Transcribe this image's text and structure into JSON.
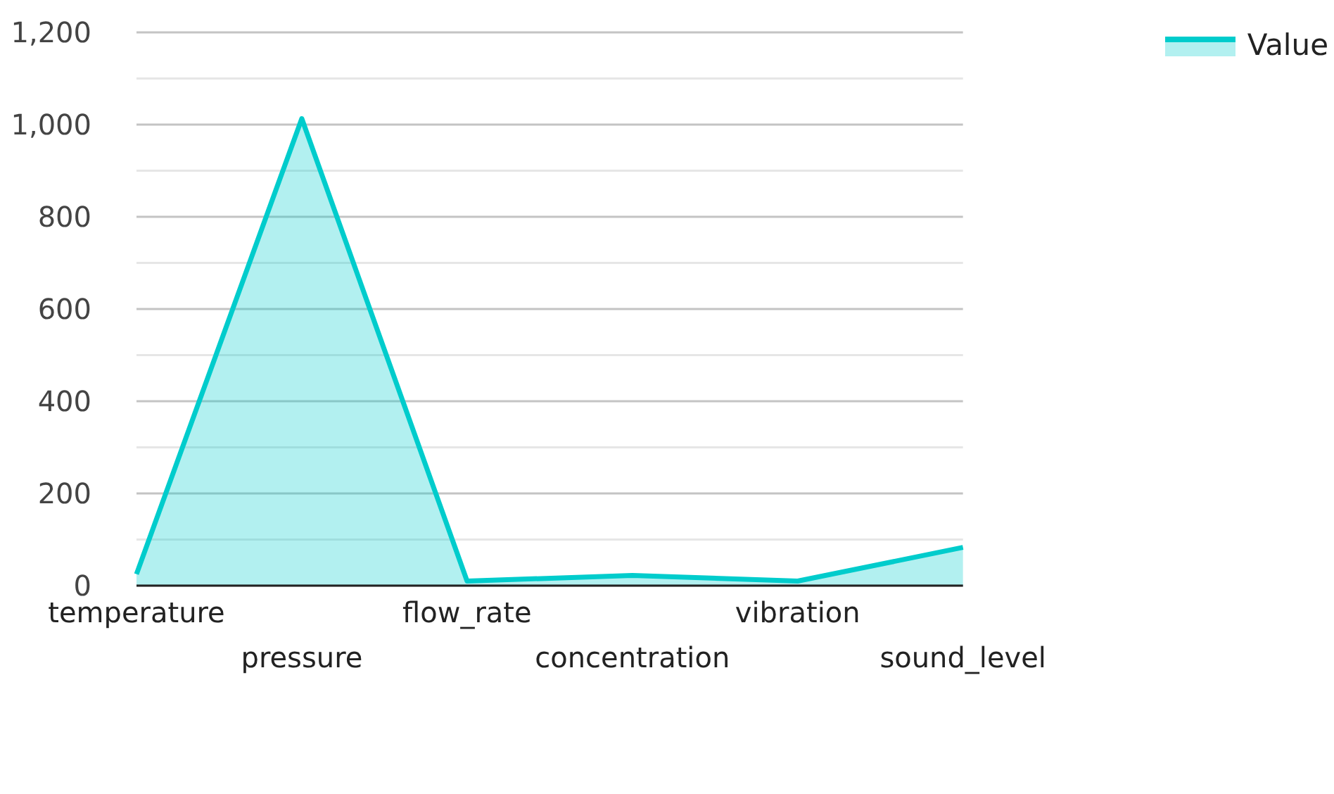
{
  "chart_data": {
    "type": "area",
    "categories": [
      "temperature",
      "pressure",
      "flow_rate",
      "concentration",
      "vibration",
      "sound_level"
    ],
    "series": [
      {
        "name": "Value",
        "color": "#00cccc",
        "values": [
          25,
          1013,
          10,
          22,
          10,
          83
        ]
      }
    ],
    "ylim": [
      0,
      1200
    ],
    "yticks": [
      0,
      {
        "value": 100,
        "label": null
      },
      200,
      {
        "value": 300,
        "label": null
      },
      400,
      {
        "value": 500,
        "label": null
      },
      600,
      {
        "value": 700,
        "label": null
      },
      800,
      {
        "value": 900,
        "label": null
      },
      {
        "value": 1000,
        "label": "1,000"
      },
      {
        "value": 1100,
        "label": null
      },
      {
        "value": 1200,
        "label": "1,200"
      }
    ],
    "grid": "y",
    "legend": "top right"
  }
}
